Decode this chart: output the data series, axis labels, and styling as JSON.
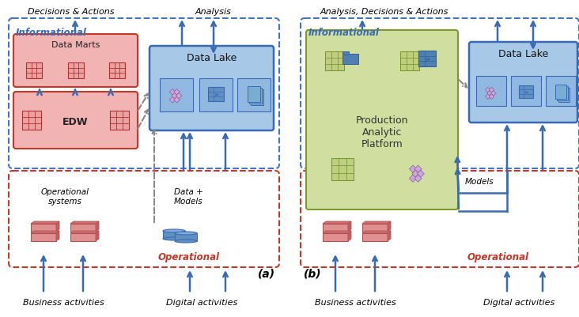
{
  "bg_color": "#ffffff",
  "arrow_color": "#3B6AB5",
  "info_border_color": "#4472C4",
  "op_border_color": "#C0392B",
  "data_mart_fill": "#F2B3B3",
  "data_mart_border": "#C0392B",
  "edw_fill": "#F2B3B3",
  "edw_border": "#C0392B",
  "data_lake_fill": "#A8C8E8",
  "data_lake_border": "#3B6AB5",
  "data_lake_icon_fill": "#7AADD4",
  "pap_fill": "#D0DFA0",
  "pap_border": "#7A9A30",
  "informational_text_color": "#3B6AB5",
  "operational_text_color": "#C0392B",
  "title_a": "Decisions & Actions",
  "title_a2": "Analysis",
  "title_b": "Analysis, Decisions & Actions",
  "label_informational": "Informational",
  "label_operational": "Operational",
  "label_data_marts": "Data Marts",
  "label_edw": "EDW",
  "label_data_lake_a": "Data Lake",
  "label_data_lake_b": "Data Lake",
  "label_pap": "Production\nAnalytic\nPlatform",
  "label_op_systems": "Operational\nsystems",
  "label_data_models": "Data +\nModels",
  "label_models": "Models",
  "label_business": "Business activities",
  "label_digital": "Digital activities",
  "label_a": "(a)",
  "label_b": "(b)"
}
